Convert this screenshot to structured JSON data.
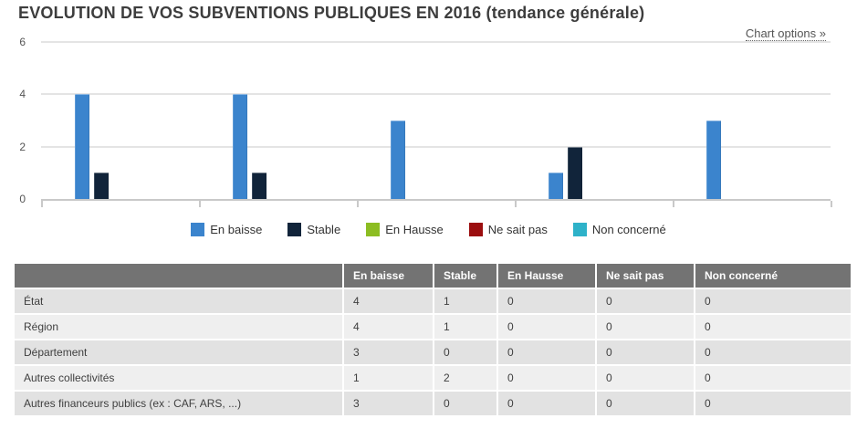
{
  "header": {
    "title": "EVOLUTION DE VOS SUBVENTIONS PUBLIQUES EN 2016 (tendance générale)",
    "chart_options_label": "Chart options »"
  },
  "chart_data": {
    "type": "bar",
    "title": "EVOLUTION DE VOS SUBVENTIONS PUBLIQUES EN 2016 (tendance générale)",
    "categories": [
      "État",
      "Région",
      "Département",
      "Autres collectivités",
      "Autres financeurs publics (ex : CAF, ARS, ...)"
    ],
    "series": [
      {
        "name": "En baisse",
        "color": "#3b84cd",
        "values": [
          4,
          4,
          3,
          1,
          3
        ]
      },
      {
        "name": "Stable",
        "color": "#11243a",
        "values": [
          1,
          1,
          0,
          2,
          0
        ]
      },
      {
        "name": "En Hausse",
        "color": "#8cbd22",
        "values": [
          0,
          0,
          0,
          0,
          0
        ]
      },
      {
        "name": "Ne sait pas",
        "color": "#9b0e0f",
        "values": [
          0,
          0,
          0,
          0,
          0
        ]
      },
      {
        "name": "Non concerné",
        "color": "#2eb2c9",
        "values": [
          0,
          0,
          0,
          0,
          0
        ]
      }
    ],
    "ylim": [
      0,
      6
    ],
    "y_ticks": [
      0,
      2,
      4,
      6
    ],
    "grid": true,
    "legend_position": "bottom",
    "x_axis_labels_visible": false
  },
  "table": {
    "columns": [
      "",
      "En baisse",
      "Stable",
      "En Hausse",
      "Ne sait pas",
      "Non concerné"
    ],
    "rows": [
      {
        "label": "État",
        "values": [
          "4",
          "1",
          "0",
          "0",
          "0"
        ]
      },
      {
        "label": "Région",
        "values": [
          "4",
          "1",
          "0",
          "0",
          "0"
        ]
      },
      {
        "label": "Département",
        "values": [
          "3",
          "0",
          "0",
          "0",
          "0"
        ]
      },
      {
        "label": "Autres collectivités",
        "values": [
          "1",
          "2",
          "0",
          "0",
          "0"
        ]
      },
      {
        "label": "Autres financeurs publics (ex : CAF, ARS, ...)",
        "values": [
          "3",
          "0",
          "0",
          "0",
          "0"
        ]
      }
    ]
  },
  "colors": {
    "grid": "#e4e4e4",
    "axis": "#c9c9c9",
    "table_header_bg": "#737373",
    "row_odd_bg": "#e2e2e2",
    "row_even_bg": "#efefef"
  }
}
